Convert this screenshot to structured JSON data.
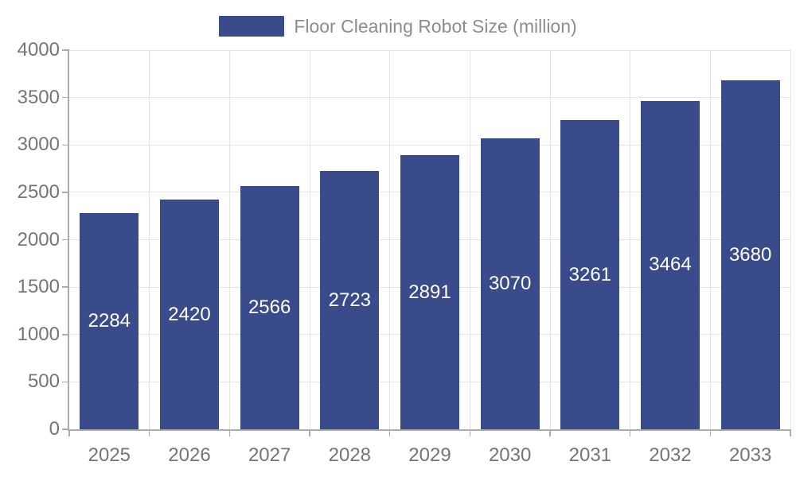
{
  "chart_data": {
    "type": "bar",
    "title": "",
    "legend": {
      "label": "Floor Cleaning Robot Size (million)",
      "position": "top"
    },
    "categories": [
      "2025",
      "2026",
      "2027",
      "2028",
      "2029",
      "2030",
      "2031",
      "2032",
      "2033"
    ],
    "series": [
      {
        "name": "Floor Cleaning Robot Size (million)",
        "values": [
          2284,
          2420,
          2566,
          2723,
          2891,
          3070,
          3261,
          3464,
          3680
        ]
      }
    ],
    "xlabel": "",
    "ylabel": "",
    "ylim": [
      0,
      4000
    ],
    "ytick_step": 500,
    "grid": true,
    "bar_labels_shown": true,
    "legend_position": "top-center"
  },
  "colors": {
    "bar": "#3a4b8c",
    "grid": "#e4e4e4",
    "axis": "#ababab",
    "tick_label": "#757575",
    "legend_text": "#8c8c8c",
    "bar_value_label": "#ffffff",
    "background": "#ffffff"
  }
}
